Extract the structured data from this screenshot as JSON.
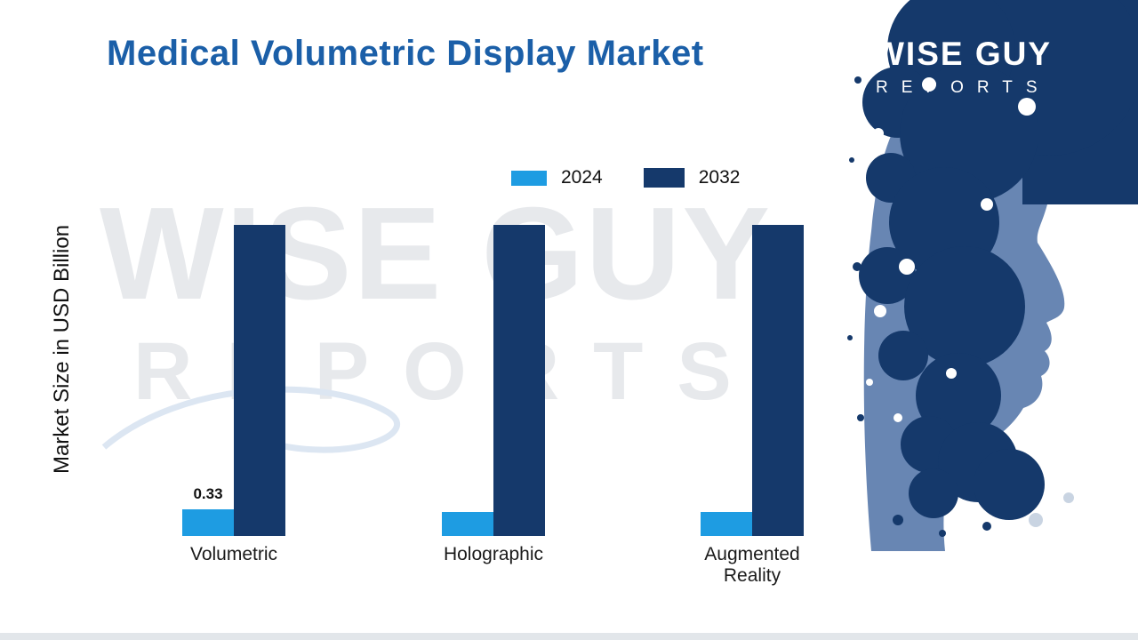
{
  "page": {
    "title": "Medical Volumetric Display Market"
  },
  "logo": {
    "line1": "WISE GUY",
    "line2": "REPORTS"
  },
  "watermark": {
    "line1": "WISE GUY",
    "line2": "REPORTS"
  },
  "axis": {
    "y_label": "Market Size in USD Billion"
  },
  "legend": [
    {
      "label": "2024",
      "color": "#1E9CE2"
    },
    {
      "label": "2032",
      "color": "#15396B"
    }
  ],
  "colors": {
    "title_blue": "#1B5FA8",
    "bar_2024": "#1E9CE2",
    "bar_2032": "#15396B",
    "logo_navy": "#15396B",
    "watermark_gray": "#E7E9EC"
  },
  "chart_data": {
    "type": "bar",
    "title": "Medical Volumetric Display Market",
    "categories": [
      "Volumetric",
      "Holographic",
      "Augmented Reality"
    ],
    "series": [
      {
        "name": "2024",
        "color": "#1E9CE2",
        "values": [
          0.33,
          0.3,
          0.3
        ],
        "labels": [
          "0.33",
          "",
          ""
        ]
      },
      {
        "name": "2032",
        "color": "#15396B",
        "values": [
          3.85,
          3.85,
          3.85
        ],
        "labels": [
          "",
          "",
          ""
        ]
      }
    ],
    "xlabel": "",
    "ylabel": "Market Size in USD Billion",
    "ylim": [
      0,
      4.2
    ],
    "grid": false,
    "legend_position": "top-right"
  }
}
